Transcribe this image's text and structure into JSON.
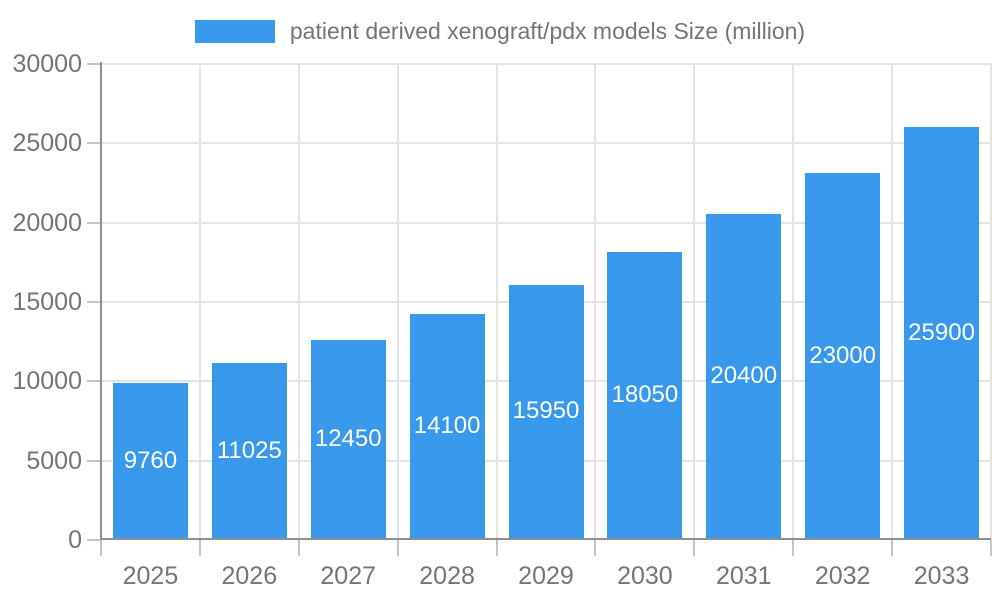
{
  "legend": {
    "label": "patient derived xenograft/pdx models Size (million)"
  },
  "chart_data": {
    "type": "bar",
    "title": "patient derived xenograft/pdx models Size (million)",
    "categories": [
      "2025",
      "2026",
      "2027",
      "2028",
      "2029",
      "2030",
      "2031",
      "2032",
      "2033"
    ],
    "series": [
      {
        "name": "patient derived xenograft/pdx models Size (million)",
        "values": [
          9760,
          11025,
          12450,
          14100,
          15950,
          18050,
          20400,
          23000,
          25900
        ]
      }
    ],
    "bar_value_labels": [
      "9760",
      "11025",
      "12450",
      "14100",
      "15950",
      "18050",
      "20400",
      "23000",
      "25900"
    ],
    "xlabel": "",
    "ylabel": "",
    "ylim": [
      0,
      30000
    ],
    "yticks": [
      0,
      5000,
      10000,
      15000,
      20000,
      25000,
      30000
    ],
    "ytick_labels": [
      "0",
      "5000",
      "10000",
      "15000",
      "20000",
      "25000",
      "30000"
    ],
    "grid": true,
    "legend_position": "top",
    "colors": {
      "bar": "#3899EC",
      "bar_label_text": "#ffffff",
      "axis_text": "#757575",
      "gridline": "#e4e4e4",
      "axis_line": "#8e8e8e",
      "tick": "#c4c4c4",
      "background": "#ffffff"
    }
  }
}
